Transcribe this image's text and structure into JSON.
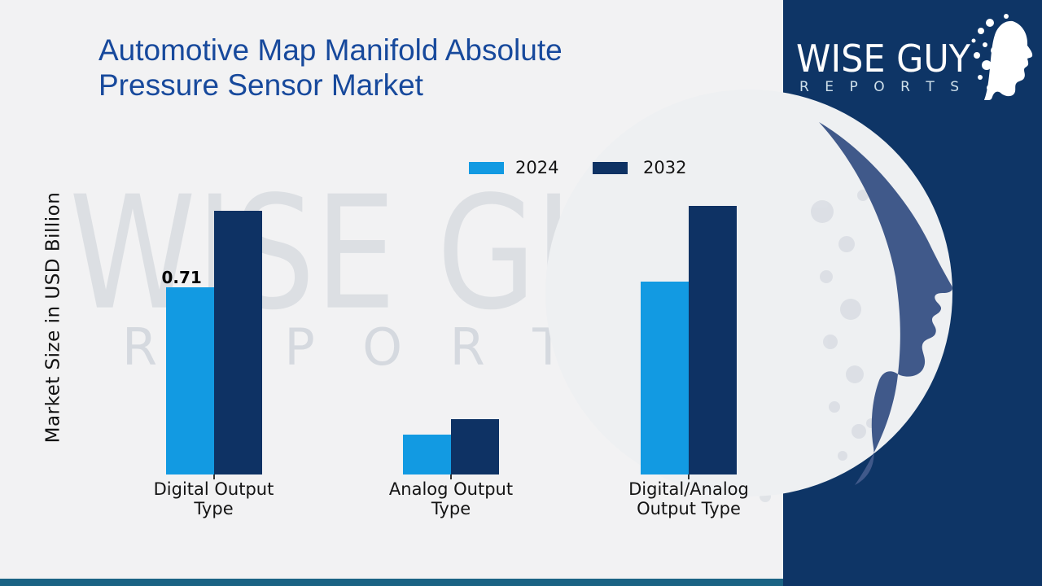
{
  "title": {
    "line1": "Automotive Map Manifold Absolute",
    "line2": "Pressure Sensor Market"
  },
  "watermark": {
    "big": "WISE GUY",
    "small": "R E P O R T S"
  },
  "logo": {
    "big": "WISE GUY",
    "small": "R E P O R T S"
  },
  "chart_data": {
    "type": "bar",
    "categories": [
      "Digital Output Type",
      "Analog Output Type",
      "Digital/Analog Output Type"
    ],
    "series": [
      {
        "name": "2024",
        "color": "#129ae2",
        "values": [
          0.71,
          0.15,
          0.73
        ]
      },
      {
        "name": "2032",
        "color": "#0e3264",
        "values": [
          1.0,
          0.21,
          1.02
        ]
      }
    ],
    "value_labels": [
      {
        "series_index": 0,
        "category_index": 0,
        "text": "0.71"
      }
    ],
    "ylabel": "Market Size in USD Billion",
    "xlabel": "",
    "ylim": [
      0,
      1.1
    ],
    "grid": false,
    "legend_position": "top-center"
  },
  "colors": {
    "title_blue": "#17499c",
    "bar_2024": "#129ae2",
    "bar_2032": "#0e3264",
    "panel_navy": "#0e3566",
    "bottom_strip_teal": "#1a6384",
    "face_slate": "#40598a",
    "background": "#f2f2f3"
  }
}
